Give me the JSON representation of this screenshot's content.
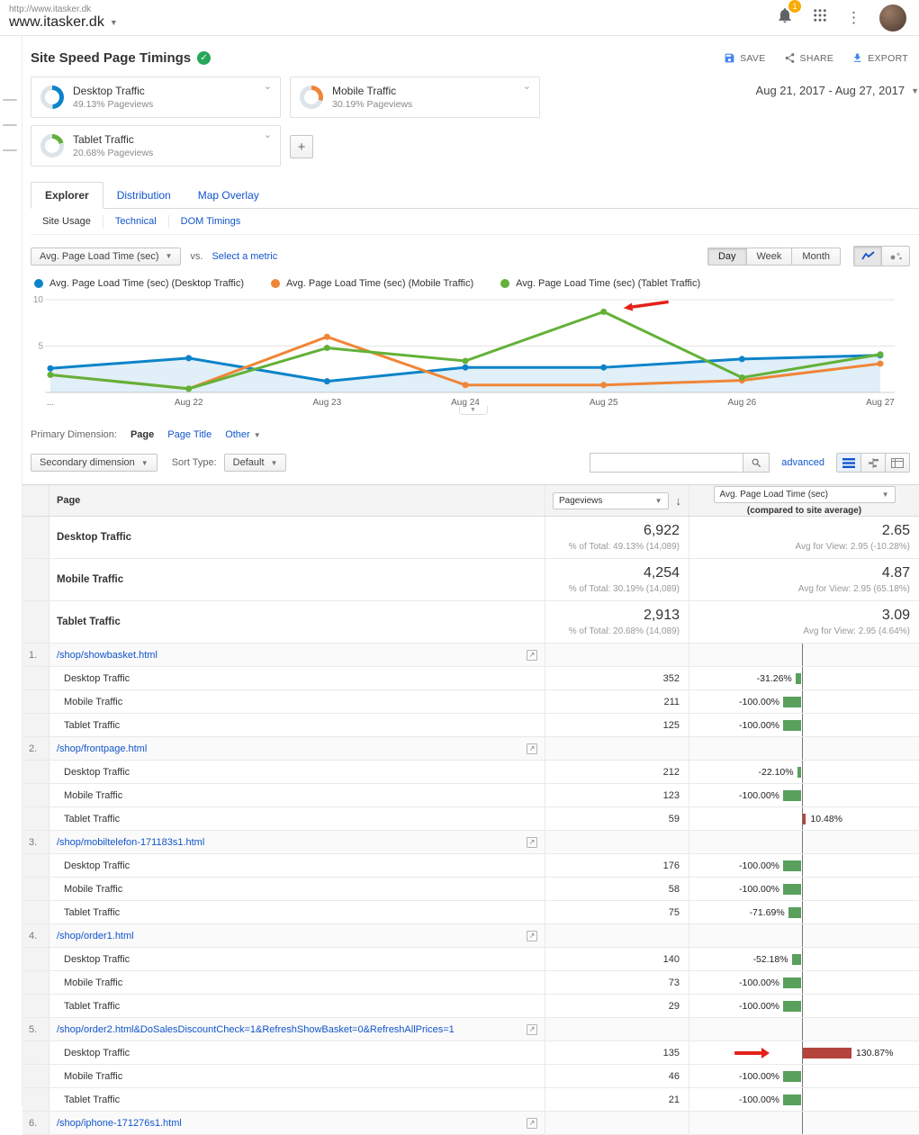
{
  "topbar": {
    "url": "http://www.itasker.dk",
    "account": "www.itasker.dk",
    "notification_badge": "1"
  },
  "header": {
    "title": "Site Speed Page Timings",
    "save": "SAVE",
    "share": "SHARE",
    "export": "EXPORT",
    "date_range": "Aug 21, 2017 - Aug 27, 2017"
  },
  "segments": [
    {
      "name": "Desktop Traffic",
      "detail": "49.13% Pageviews",
      "pct": 49.13,
      "color": "#0d83c9"
    },
    {
      "name": "Mobile Traffic",
      "detail": "30.19% Pageviews",
      "pct": 30.19,
      "color": "#f08536"
    },
    {
      "name": "Tablet Traffic",
      "detail": "20.68% Pageviews",
      "pct": 20.68,
      "color": "#63b138"
    }
  ],
  "tabs": [
    {
      "label": "Explorer",
      "active": true
    },
    {
      "label": "Distribution",
      "active": false
    },
    {
      "label": "Map Overlay",
      "active": false
    }
  ],
  "subtabs": [
    {
      "label": "Site Usage",
      "active": true
    },
    {
      "label": "Technical",
      "active": false
    },
    {
      "label": "DOM Timings",
      "active": false
    }
  ],
  "metric_bar": {
    "metric": "Avg. Page Load Time (sec)",
    "vs": "vs.",
    "select_metric": "Select a metric",
    "granularity": [
      {
        "label": "Day",
        "active": true
      },
      {
        "label": "Week",
        "active": false
      },
      {
        "label": "Month",
        "active": false
      }
    ]
  },
  "chart_data": {
    "type": "line",
    "x": [
      "...",
      "Aug 22",
      "Aug 23",
      "Aug 24",
      "Aug 25",
      "Aug 26",
      "Aug 27"
    ],
    "ylim": [
      0,
      10
    ],
    "yticks": [
      5,
      10
    ],
    "series": [
      {
        "name": "Avg. Page Load Time (sec) (Desktop Traffic)",
        "color": "#0d83c9",
        "area": true,
        "values": [
          2.6,
          3.7,
          1.2,
          2.7,
          2.7,
          3.6,
          4.0
        ]
      },
      {
        "name": "Avg. Page Load Time (sec) (Mobile Traffic)",
        "color": "#f08536",
        "values": [
          1.9,
          0.4,
          6.0,
          0.8,
          0.8,
          1.3,
          3.1
        ]
      },
      {
        "name": "Avg. Page Load Time (sec) (Tablet Traffic)",
        "color": "#63b138",
        "values": [
          1.9,
          0.4,
          4.8,
          3.4,
          8.7,
          1.6,
          4.1
        ]
      }
    ],
    "annotation": "red arrow pointing at Tablet Traffic peak on Aug 25"
  },
  "primary_dimension": {
    "label": "Primary Dimension:",
    "options": [
      {
        "label": "Page",
        "active": true
      },
      {
        "label": "Page Title",
        "active": false
      },
      {
        "label": "Other",
        "active": false,
        "dropdown": true
      }
    ]
  },
  "controls": {
    "secondary_dimension": "Secondary dimension",
    "sort_type_label": "Sort Type:",
    "sort_type": "Default",
    "advanced": "advanced",
    "search_value": ""
  },
  "table": {
    "header": {
      "page": "Page",
      "pageviews": "Pageviews",
      "metric": "Avg. Page Load Time (sec)",
      "metric_sub": "(compared to site average)"
    },
    "summary": [
      {
        "label": "Desktop Traffic",
        "pageviews": "6,922",
        "pageviews_sub": "% of Total: 49.13% (14,089)",
        "metric": "2.65",
        "metric_sub": "Avg for View: 2.95 (-10.28%)"
      },
      {
        "label": "Mobile Traffic",
        "pageviews": "4,254",
        "pageviews_sub": "% of Total: 30.19% (14,089)",
        "metric": "4.87",
        "metric_sub": "Avg for View: 2.95 (65.18%)"
      },
      {
        "label": "Tablet Traffic",
        "pageviews": "2,913",
        "pageviews_sub": "% of Total: 20.68% (14,089)",
        "metric": "3.09",
        "metric_sub": "Avg for View: 2.95 (4.64%)"
      }
    ],
    "groups": [
      {
        "index": "1.",
        "url": "/shop/showbasket.html",
        "rows": [
          {
            "label": "Desktop Traffic",
            "pageviews": "352",
            "delta": -31.26,
            "delta_label": "-31.26%"
          },
          {
            "label": "Mobile Traffic",
            "pageviews": "211",
            "delta": -100,
            "delta_label": "-100.00%"
          },
          {
            "label": "Tablet Traffic",
            "pageviews": "125",
            "delta": -100,
            "delta_label": "-100.00%"
          }
        ]
      },
      {
        "index": "2.",
        "url": "/shop/frontpage.html",
        "rows": [
          {
            "label": "Desktop Traffic",
            "pageviews": "212",
            "delta": -22.1,
            "delta_label": "-22.10%"
          },
          {
            "label": "Mobile Traffic",
            "pageviews": "123",
            "delta": -100,
            "delta_label": "-100.00%"
          },
          {
            "label": "Tablet Traffic",
            "pageviews": "59",
            "delta": 10.48,
            "delta_label": "10.48%"
          }
        ]
      },
      {
        "index": "3.",
        "url": "/shop/mobiltelefon-171183s1.html",
        "rows": [
          {
            "label": "Desktop Traffic",
            "pageviews": "176",
            "delta": -100,
            "delta_label": "-100.00%"
          },
          {
            "label": "Mobile Traffic",
            "pageviews": "58",
            "delta": -100,
            "delta_label": "-100.00%"
          },
          {
            "label": "Tablet Traffic",
            "pageviews": "75",
            "delta": -71.69,
            "delta_label": "-71.69%"
          }
        ]
      },
      {
        "index": "4.",
        "url": "/shop/order1.html",
        "rows": [
          {
            "label": "Desktop Traffic",
            "pageviews": "140",
            "delta": -52.18,
            "delta_label": "-52.18%"
          },
          {
            "label": "Mobile Traffic",
            "pageviews": "73",
            "delta": -100,
            "delta_label": "-100.00%"
          },
          {
            "label": "Tablet Traffic",
            "pageviews": "29",
            "delta": -100,
            "delta_label": "-100.00%"
          }
        ]
      },
      {
        "index": "5.",
        "url": "/shop/order2.html&DoSalesDiscountCheck=1&RefreshShowBasket=0&RefreshAllPrices=1",
        "rows": [
          {
            "label": "Desktop Traffic",
            "pageviews": "135",
            "delta": 130.87,
            "delta_label": "130.87%",
            "arrow": true
          },
          {
            "label": "Mobile Traffic",
            "pageviews": "46",
            "delta": -100,
            "delta_label": "-100.00%"
          },
          {
            "label": "Tablet Traffic",
            "pageviews": "21",
            "delta": -100,
            "delta_label": "-100.00%"
          }
        ]
      },
      {
        "index": "6.",
        "url": "/shop/iphone-171276s1.html",
        "rows": []
      }
    ]
  },
  "colors": {
    "link": "#1155cc",
    "positive_bar": "#b5443c",
    "negative_bar": "#58a05c",
    "annotation_red": "#e32119",
    "notification_badge": "#f9ab00"
  }
}
